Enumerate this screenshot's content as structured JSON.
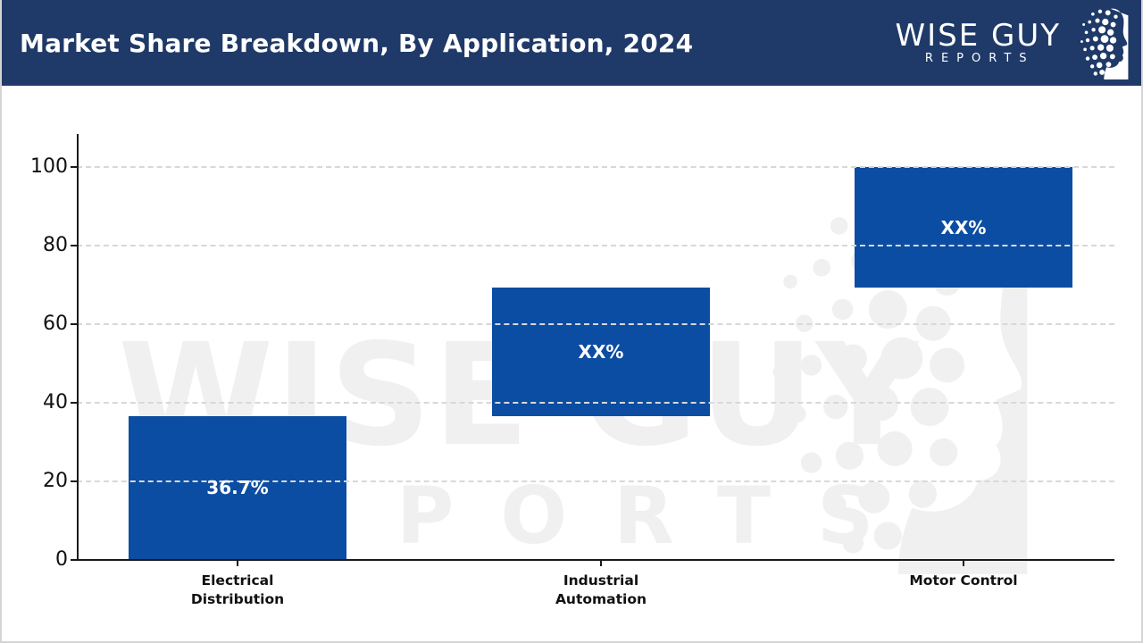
{
  "header": {
    "title": "Market Share Breakdown, By Application, 2024",
    "logo": {
      "line1": "WISE GUY",
      "line2": "REPORTS"
    }
  },
  "watermark": {
    "line1": "WISE GUY",
    "line2": "REPORTS"
  },
  "chart_data": {
    "type": "bar",
    "variant": "waterfall (cumulative market-share segments)",
    "title": "Market Share Breakdown, By Application, 2024",
    "categories": [
      "Electrical Distribution",
      "Industrial Automation",
      "Motor Control"
    ],
    "category_label_lines": [
      [
        "Electrical",
        "Distribution"
      ],
      [
        "Industrial",
        "Automation"
      ],
      [
        "Motor Control"
      ]
    ],
    "segments": [
      {
        "category": "Electrical Distribution",
        "start": 0,
        "end": 36.7,
        "value_label": "36.7%"
      },
      {
        "category": "Industrial Automation",
        "start": 36.7,
        "end": 69.3,
        "value_label": "XX%"
      },
      {
        "category": "Motor Control",
        "start": 69.3,
        "end": 100,
        "value_label": "XX%"
      }
    ],
    "xlabel": "",
    "ylabel": "",
    "ylim": [
      0,
      107
    ],
    "yticks": [
      0,
      20,
      40,
      60,
      80,
      100
    ],
    "grid": "horizontal-dashed-over-bars",
    "legend": "none"
  },
  "colors": {
    "header_bg": "#1F3A68",
    "bar": "#0B4DA2",
    "bar_label": "#FFFFFF",
    "grid": "#D8D8D8",
    "axis": "#1A1A1A",
    "tick_text": "#111111",
    "watermark": "#F0F0F0",
    "logo_head": "#FFFFFF",
    "page_border": "#D5D5D5"
  }
}
